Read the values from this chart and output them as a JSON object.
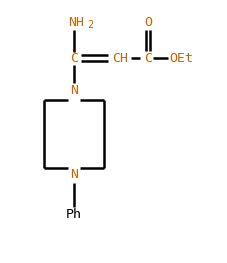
{
  "bg_color": "#ffffff",
  "line_color": "#000000",
  "orange": "#cc6600",
  "black": "#000000",
  "figsize": [
    2.27,
    2.63
  ],
  "dpi": 100,
  "xlim": [
    0,
    227
  ],
  "ylim": [
    0,
    263
  ],
  "lw": 1.8,
  "fs_main": 9.5,
  "fs_sub": 7.5
}
